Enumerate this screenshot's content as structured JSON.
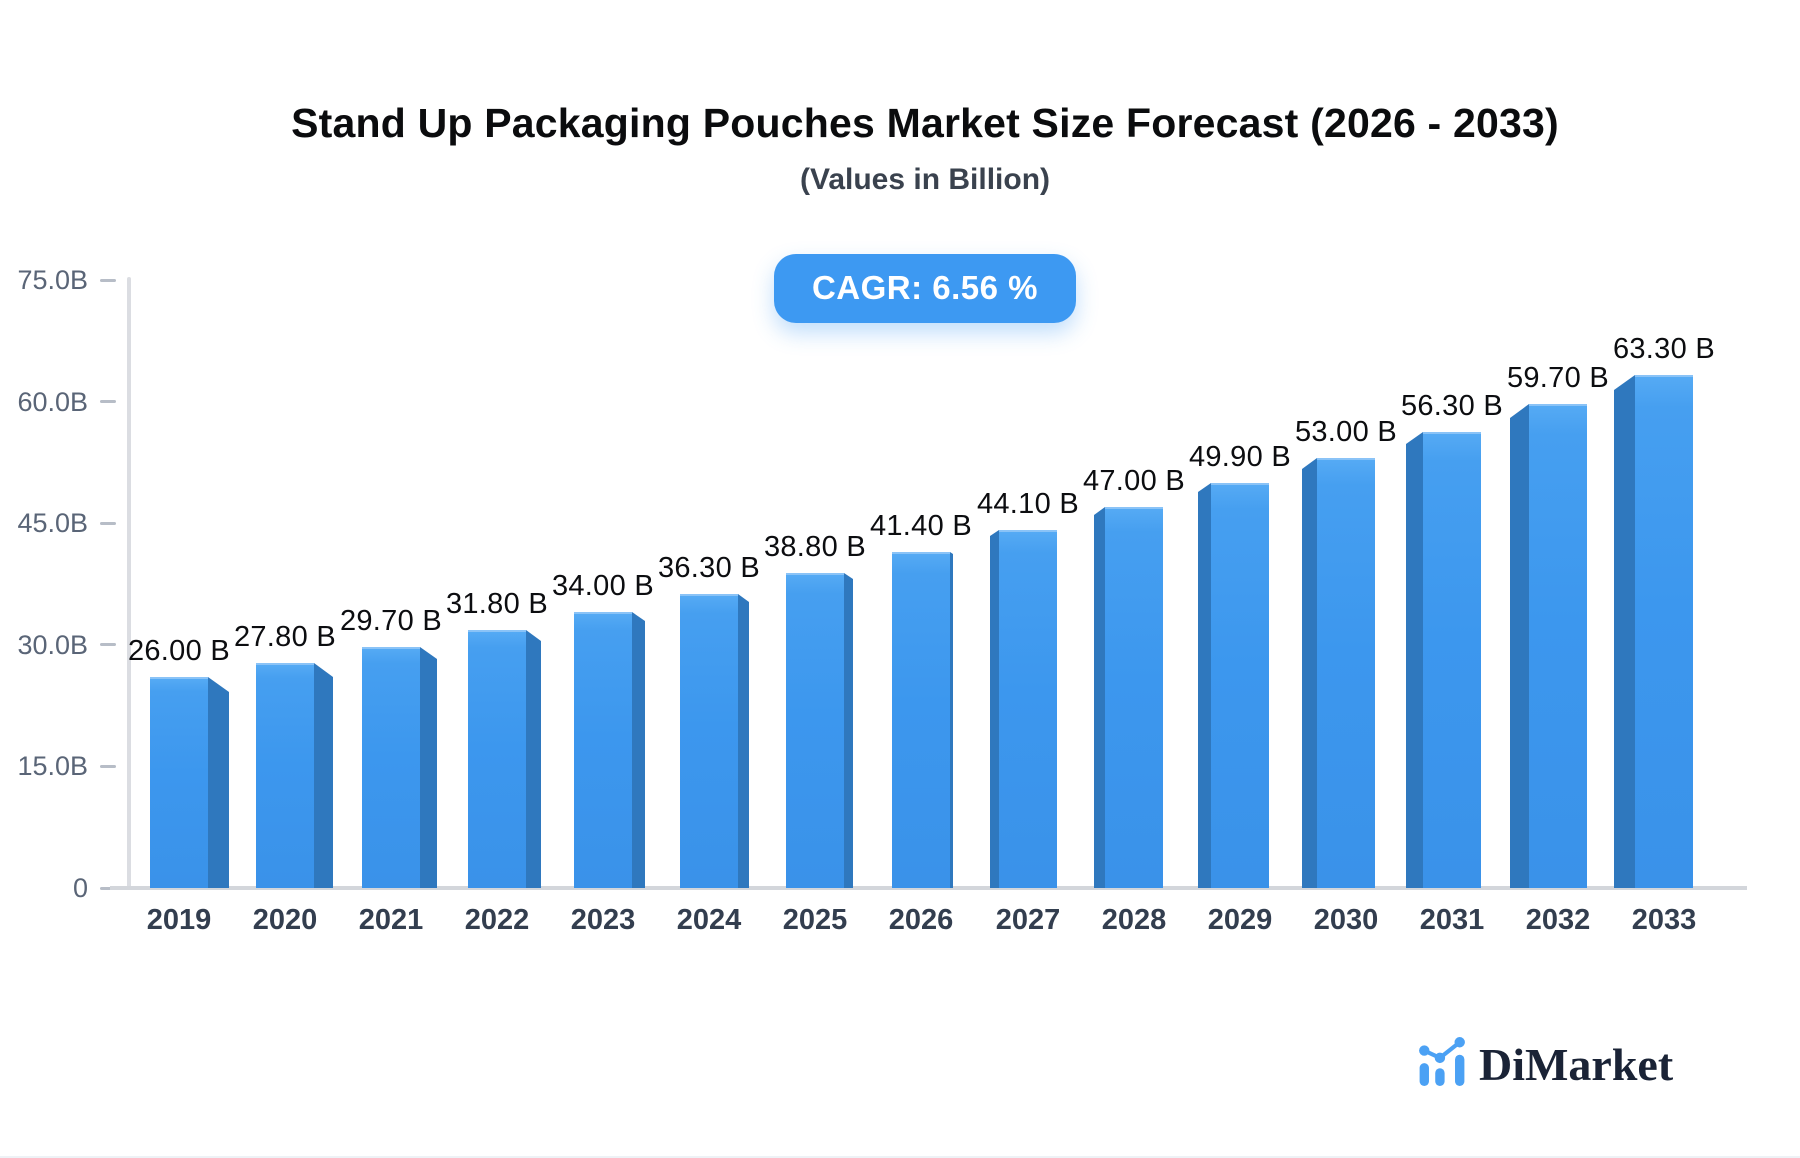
{
  "title": "Stand Up Packaging Pouches Market Size Forecast (2026 - 2033)",
  "subtitle": "(Values in Billion)",
  "badge": {
    "label": "CAGR: 6.56 %"
  },
  "logo": {
    "text": "DiMarket",
    "icon": "mini-bar-chart-icon",
    "accent": "#4ba1f4"
  },
  "chart_data": {
    "type": "bar",
    "title": "Stand Up Packaging Pouches Market Size Forecast (2026 - 2033)",
    "subtitle": "(Values in Billion)",
    "annotation": "CAGR: 6.56 %",
    "categories": [
      "2019",
      "2020",
      "2021",
      "2022",
      "2023",
      "2024",
      "2025",
      "2026",
      "2027",
      "2028",
      "2029",
      "2030",
      "2031",
      "2032",
      "2033"
    ],
    "values": [
      26.0,
      27.8,
      29.7,
      31.8,
      34.0,
      36.3,
      38.8,
      41.4,
      44.1,
      47.0,
      49.9,
      53.0,
      56.3,
      59.7,
      63.3
    ],
    "value_labels": [
      "26.00 B",
      "27.80 B",
      "29.70 B",
      "31.80 B",
      "34.00 B",
      "36.30 B",
      "38.80 B",
      "41.40 B",
      "44.10 B",
      "47.00 B",
      "49.90 B",
      "53.00 B",
      "56.30 B",
      "59.70 B",
      "63.30 B"
    ],
    "xlabel": "",
    "ylabel": "",
    "ylim": [
      0,
      75
    ],
    "yticks": {
      "values": [
        0,
        15,
        30,
        45,
        60,
        75
      ],
      "labels": [
        "0",
        "15.0B",
        "30.0B",
        "45.0B",
        "60.0B",
        "75.0B"
      ]
    },
    "grid": false,
    "legend": "none",
    "bar_color": "#3f9cef",
    "bar_side_color": "#2f78be",
    "style": "3d-bars-center-perspective"
  }
}
